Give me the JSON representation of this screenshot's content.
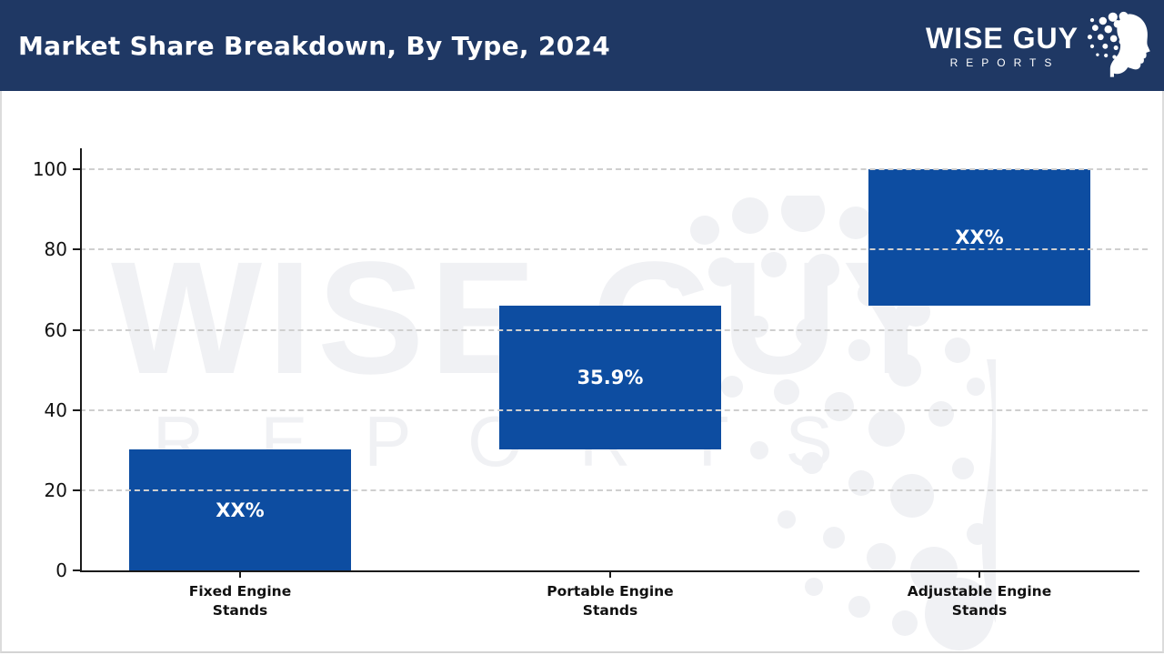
{
  "header": {
    "title": "Market Share Breakdown, By Type, 2024",
    "logo": {
      "line1": "WISE GUY",
      "line2": "REPORTS"
    }
  },
  "watermark": {
    "line1": "WISE GUY",
    "line2": "REPORTS"
  },
  "chart_data": {
    "type": "bar",
    "subtype": "floating-breakdown-waterfall",
    "title": "Market Share Breakdown, By Type, 2024",
    "categories": [
      "Fixed Engine\nStands",
      "Portable Engine\nStands",
      "Adjustable Engine\nStands"
    ],
    "segments": [
      {
        "category": "Fixed Engine Stands",
        "start": 0,
        "end": 30.1,
        "label": "XX%"
      },
      {
        "category": "Portable Engine Stands",
        "start": 30.1,
        "end": 66.0,
        "label": "35.9%"
      },
      {
        "category": "Adjustable Engine Stands",
        "start": 66.0,
        "end": 100,
        "label": "XX%"
      }
    ],
    "yticks": [
      0,
      20,
      40,
      60,
      80,
      100
    ],
    "ylim": [
      0,
      105
    ],
    "xlabel": "",
    "ylabel": "",
    "grid": "horizontal-dashed",
    "legend": "none",
    "value_labels": [
      "XX%",
      "35.9%",
      "XX%"
    ]
  },
  "colors": {
    "header_bg": "#1f3864",
    "bar": "#0d4da1",
    "grid": "#cfcfcf",
    "axis": "#1a1a1a",
    "value_label": "#ffffff",
    "watermark": "#f0f1f4"
  }
}
